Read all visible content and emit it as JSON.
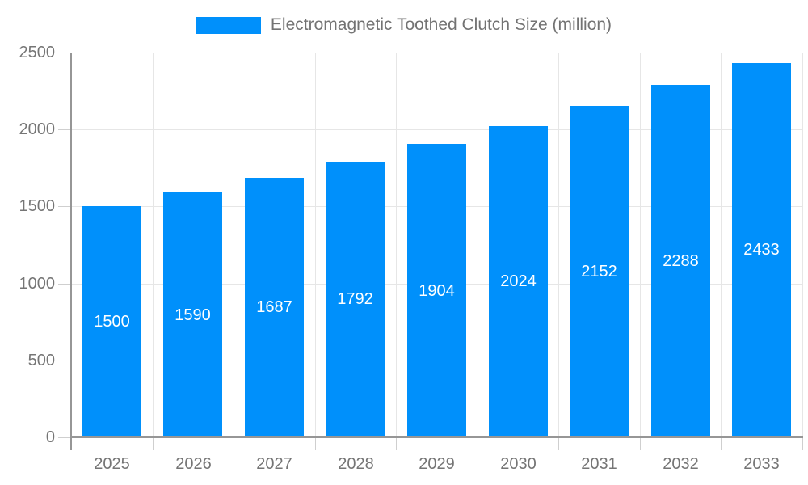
{
  "chart_data": {
    "type": "bar",
    "title": "Electromagnetic Toothed Clutch Size (million)",
    "legend": "Electromagnetic Toothed Clutch Size (million)",
    "legend_position": "top",
    "categories": [
      "2025",
      "2026",
      "2027",
      "2028",
      "2029",
      "2030",
      "2031",
      "2032",
      "2033"
    ],
    "series": [
      {
        "name": "Electromagnetic Toothed Clutch Size (million)",
        "values": [
          1500,
          1590,
          1687,
          1792,
          1904,
          2024,
          2152,
          2288,
          2433
        ]
      }
    ],
    "bar_value_labels": [
      "1500",
      "1590",
      "1687",
      "1792",
      "1904",
      "2024",
      "2152",
      "2288",
      "2433"
    ],
    "xlabel": "",
    "ylabel": "",
    "ylim": [
      0,
      2500
    ],
    "yticks": [
      0,
      500,
      1000,
      1500,
      2000,
      2500
    ],
    "ytick_labels": [
      "0",
      "500",
      "1000",
      "1500",
      "2000",
      "2500"
    ],
    "grid": "horizontal-and-vertical",
    "colors": {
      "bar": "#0090FB",
      "bar_label_text": "#FFFFFF",
      "axis_text": "#757575",
      "legend_text": "#737373",
      "gridline": "#E6E6E6",
      "tick": "#CFCFCF",
      "axis_line": "#969696",
      "background": "#FFFFFF"
    }
  }
}
